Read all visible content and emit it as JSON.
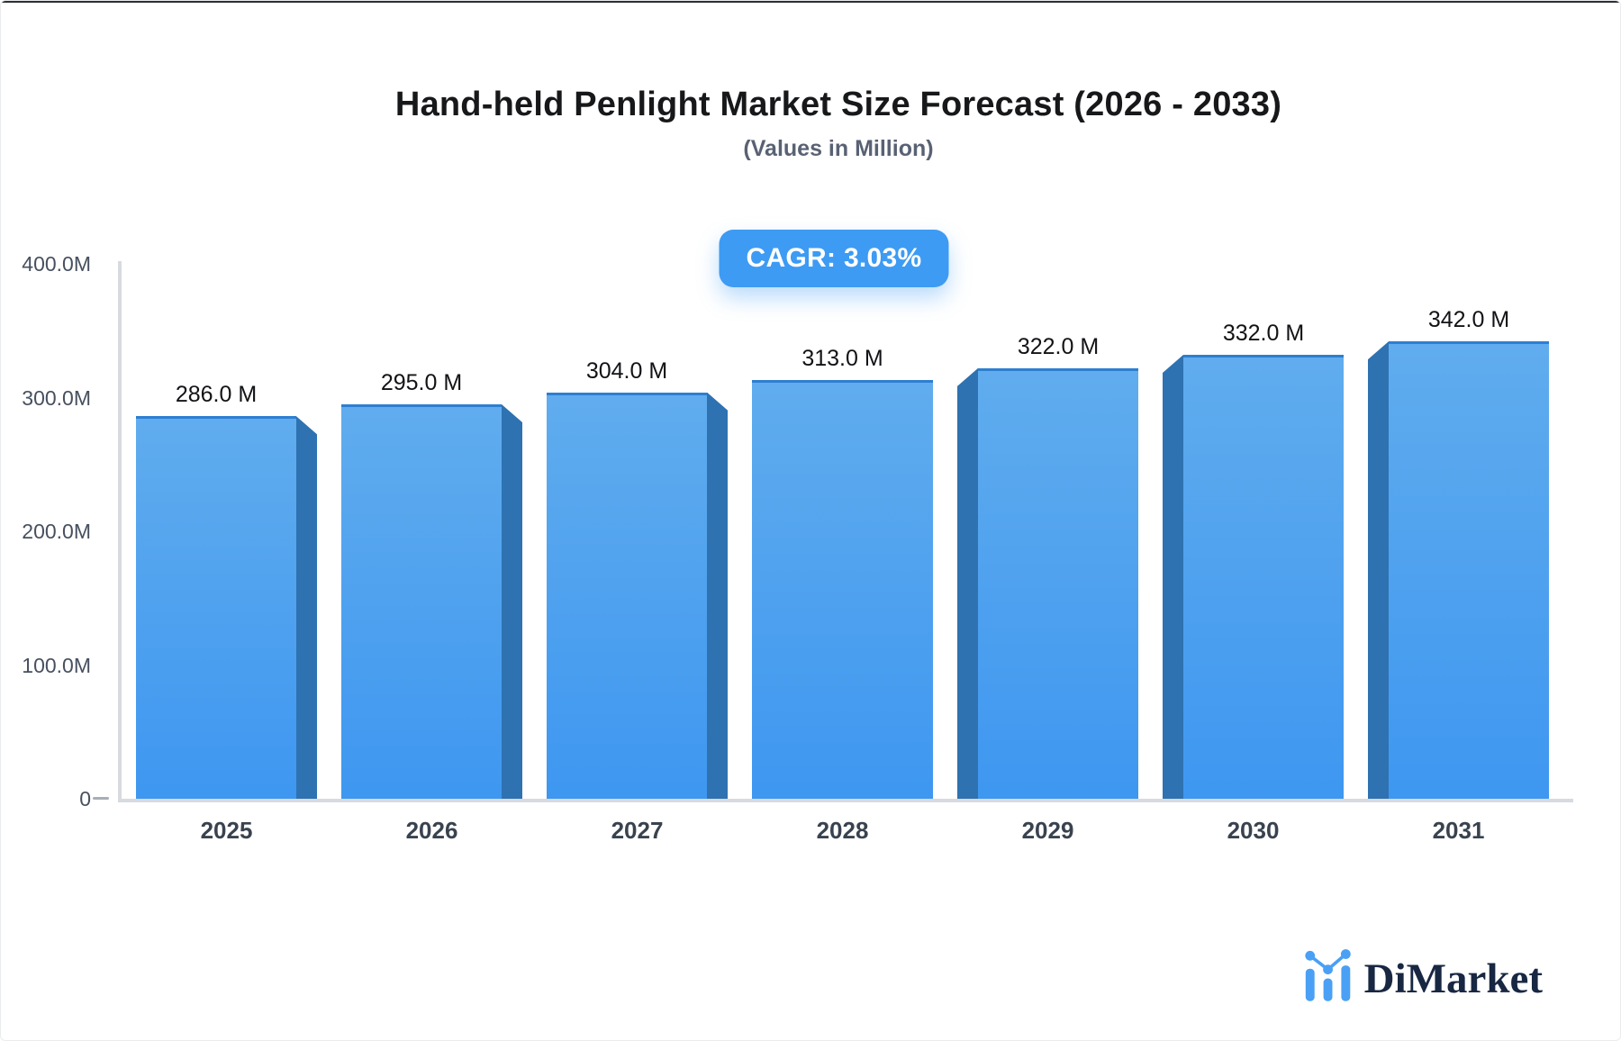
{
  "header": {
    "title": "Hand-held Penlight Market Size Forecast (2026 - 2033)",
    "subtitle": "(Values in Million)"
  },
  "cagr_badge": {
    "label": "CAGR: 3.03%"
  },
  "chart_data": {
    "type": "bar",
    "title": "Hand-held Penlight Market Size Forecast (2026 - 2033)",
    "subtitle": "(Values in Million)",
    "unit": "Million",
    "categories": [
      "2025",
      "2026",
      "2027",
      "2028",
      "2029",
      "2030",
      "2031"
    ],
    "values": [
      286,
      295,
      304,
      313,
      322,
      332,
      342
    ],
    "value_labels": [
      "286.0 M",
      "295.0 M",
      "304.0 M",
      "313.0 M",
      "322.0 M",
      "332.0 M",
      "342.0 M"
    ],
    "y_ticks": [
      {
        "label": "400.0M",
        "value": 400
      },
      {
        "label": "300.0M",
        "value": 300
      },
      {
        "label": "200.0M",
        "value": 200
      },
      {
        "label": "100.0M",
        "value": 100
      },
      {
        "label": "0",
        "value": 0
      }
    ],
    "ylim": [
      0,
      400
    ],
    "grid": false,
    "legend": false,
    "cagr_percent": "3.03%",
    "colors": {
      "bar_top": "#60acee",
      "bar_bottom": "#3e97f0",
      "bar_top_border": "#2d7fd1",
      "bar_side_face": "#2e72b1",
      "axis_line": "#d7dadf",
      "badge_background": "#3d9bf3",
      "badge_text": "#ffffff"
    }
  },
  "logo": {
    "text": "DiMarket",
    "icon": "mini-bar-line-chart-icon",
    "icon_color": "#4aa0f4",
    "text_color": "#182742"
  }
}
